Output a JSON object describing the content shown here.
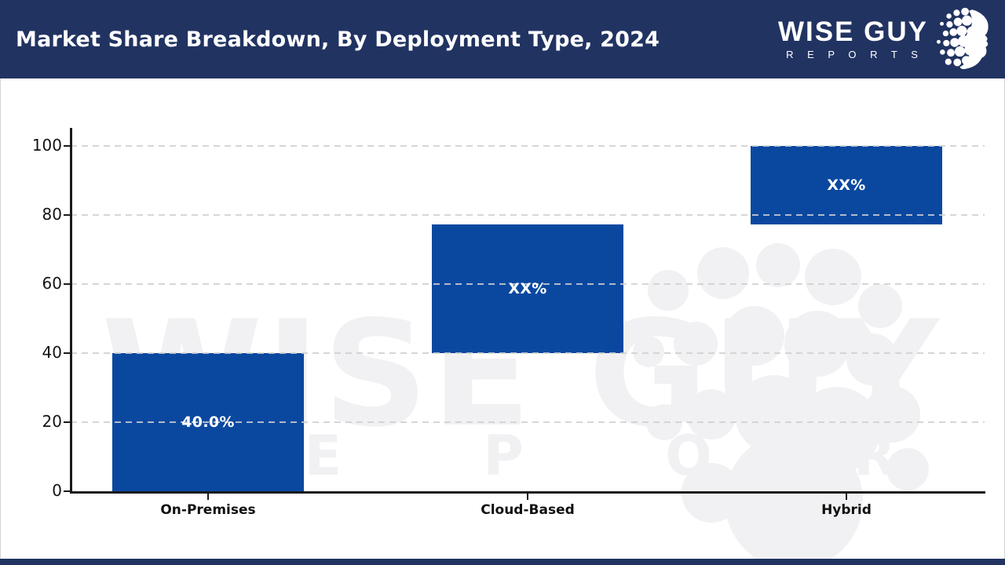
{
  "header": {
    "title": "Market Share Breakdown, By Deployment Type, 2024",
    "logo": {
      "line1": "WISE GUY",
      "line2": "R E P O R T S",
      "icon": "dotted-head-profile-icon"
    }
  },
  "watermark": {
    "line1": "WISE GUY",
    "line2": "R E P O R T S",
    "graphic": "dotted-head-profile-watermark"
  },
  "colors": {
    "header_bg": "#213361",
    "footer_bg": "#213361",
    "bar": "#0a48a0",
    "bar_label": "#ffffff",
    "axis": "#1a1a1a",
    "grid": "#cfcfcf",
    "watermark": "#f1f1f3",
    "page_bg": "#ffffff"
  },
  "chart_data": {
    "type": "bar",
    "subtype": "waterfall-floating-bars",
    "title": "Market Share Breakdown, By Deployment Type, 2024",
    "categories": [
      "On-Premises",
      "Cloud-Based",
      "Hybrid"
    ],
    "segments": [
      {
        "category": "On-Premises",
        "from": 0,
        "to": 40,
        "label": "40.0%"
      },
      {
        "category": "Cloud-Based",
        "from": 40,
        "to": 77.3,
        "label": "XX%"
      },
      {
        "category": "Hybrid",
        "from": 77.3,
        "to": 100,
        "label": "XX%"
      }
    ],
    "xlabel": "",
    "ylabel": "",
    "ylim": [
      0,
      100
    ],
    "yticks": [
      0,
      20,
      40,
      60,
      80,
      100
    ],
    "grid": "horizontal-dashed",
    "legend": "none",
    "bar_color": "#0a48a0",
    "bar_label_color": "#ffffff"
  }
}
